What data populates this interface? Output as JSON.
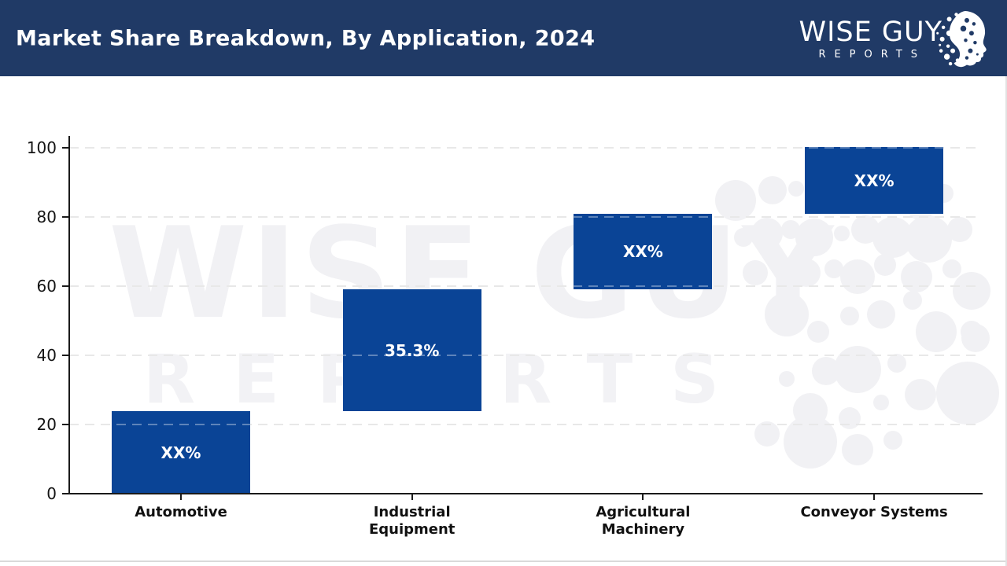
{
  "header": {
    "title": "Market Share Breakdown, By Application, 2024",
    "logo": {
      "name": "WISE GUY",
      "sub": "REPORTS"
    }
  },
  "watermark": {
    "name": "WISE GUY",
    "sub": "REPORTS"
  },
  "chart_data": {
    "type": "bar",
    "subtype": "floating-waterfall-segments",
    "title": "Market Share Breakdown, By Application, 2024",
    "categories": [
      "Automotive",
      "Industrial Equipment",
      "Agricultural Machinery",
      "Conveyor Systems"
    ],
    "category_label_lines": [
      [
        "Automotive"
      ],
      [
        "Industrial",
        "Equipment"
      ],
      [
        "Agricultural",
        "Machinery"
      ],
      [
        "Conveyor Systems"
      ]
    ],
    "bars": [
      {
        "category": "Automotive",
        "start": 0,
        "end": 23.8,
        "label": "XX%"
      },
      {
        "category": "Industrial Equipment",
        "start": 23.8,
        "end": 59.1,
        "label": "35.3%"
      },
      {
        "category": "Agricultural Machinery",
        "start": 59.1,
        "end": 80.9,
        "label": "XX%"
      },
      {
        "category": "Conveyor Systems",
        "start": 80.9,
        "end": 100.2,
        "label": "XX%"
      }
    ],
    "yticks": [
      0,
      20,
      40,
      60,
      80,
      100
    ],
    "ylim": [
      0,
      103.4
    ],
    "xlabel": "",
    "ylabel": "",
    "grid": true,
    "grid_style": "dashed",
    "legend": false,
    "bar_color": "#0a4496",
    "grid_color": "#dcdcdc",
    "axis_color": "#1a1a1a",
    "header_bg": "#203a66"
  }
}
